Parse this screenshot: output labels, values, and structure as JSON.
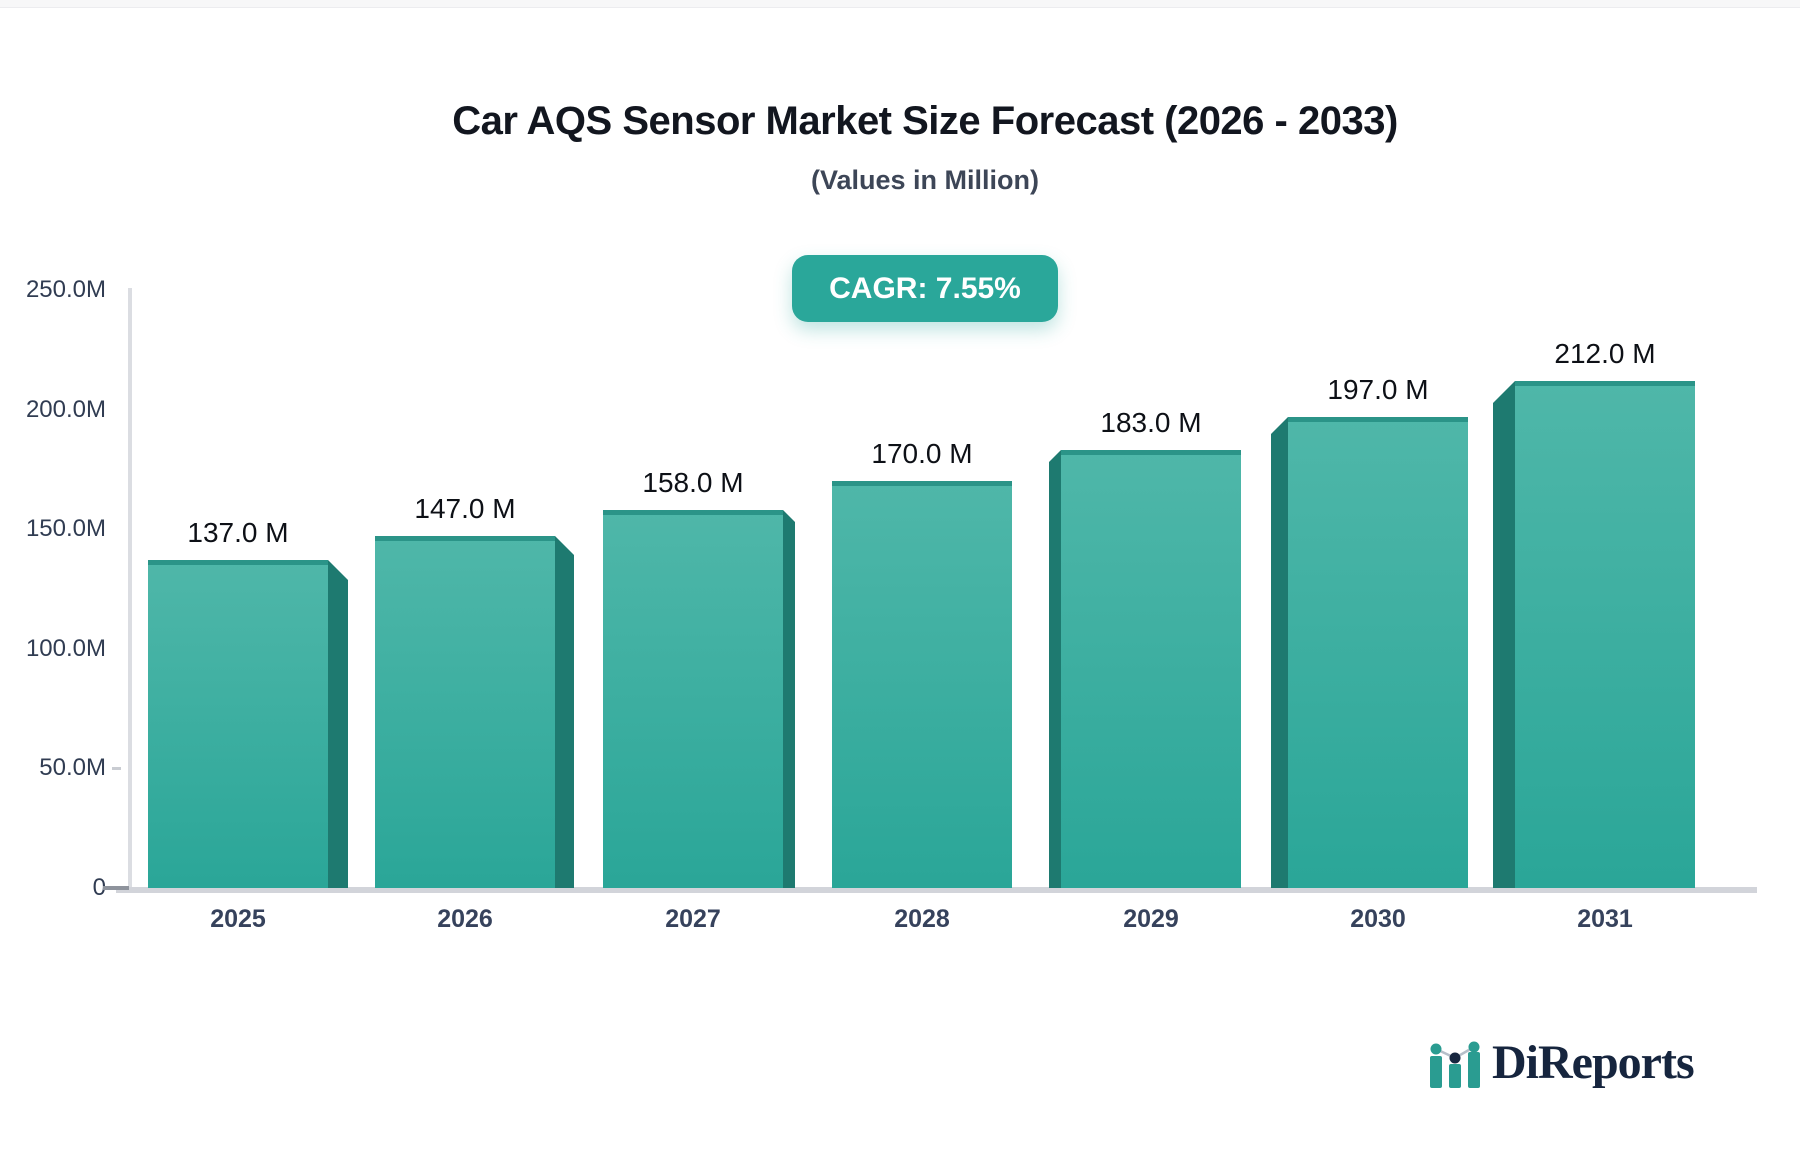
{
  "title": "Car AQS Sensor Market Size Forecast (2026 - 2033)",
  "subtitle": "(Values in Million)",
  "badge": {
    "label": "CAGR: 7.55%",
    "color": "#2aa79a"
  },
  "logo": {
    "text": "DiReports",
    "icon": "mini-bar-chart-icon"
  },
  "chart_data": {
    "type": "bar",
    "title": "Car AQS Sensor Market Size Forecast (2026 - 2033)",
    "subtitle": "(Values in Million)",
    "categories": [
      "2025",
      "2026",
      "2027",
      "2028",
      "2029",
      "2030",
      "2031"
    ],
    "values": [
      137,
      147,
      158,
      170,
      183,
      197,
      212
    ],
    "value_labels": [
      "137.0 M",
      "147.0 M",
      "158.0 M",
      "170.0 M",
      "183.0 M",
      "197.0 M",
      "212.0 M"
    ],
    "unit": "Million",
    "cagr": "7.55%",
    "ylim": [
      0,
      250
    ],
    "y_ticks": [
      250,
      200,
      150,
      100,
      50,
      0
    ],
    "y_tick_labels": [
      "250.0M",
      "200.0M",
      "150.0M",
      "100.0M",
      "50.0M",
      "0"
    ],
    "grid": false,
    "legend": "none",
    "style_3d": true,
    "colors": {
      "bar_face_top": "#4fb7a9",
      "bar_face_bottom": "#2aa698",
      "bar_top_strip": "#2b9488",
      "bar_side": "#1e7a70",
      "axis": "#d2d4da",
      "badge": "#2aa79a",
      "label_text": "#0d1016",
      "axis_text": "#36425c"
    }
  }
}
